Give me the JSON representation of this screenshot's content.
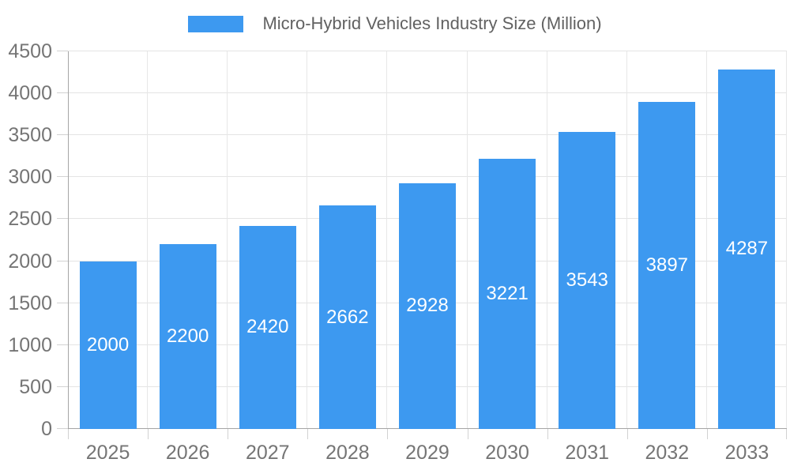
{
  "legend": {
    "label": "Micro-Hybrid Vehicles Industry Size (Million)"
  },
  "colors": {
    "bar": "#3d99f0",
    "bar_label_text": "#ffffff",
    "axis_text": "#757575",
    "legend_text": "#616161",
    "axis_line": "#a5a5a5",
    "grid_line": "#e4e4e4",
    "tick_line": "#d2d2d2",
    "background": "#ffffff"
  },
  "chart_data": {
    "type": "bar",
    "title": "Micro-Hybrid Vehicles Industry Size (Million)",
    "series": [
      {
        "name": "Micro-Hybrid Vehicles Industry Size (Million)",
        "values": [
          2000,
          2200,
          2420,
          2662,
          2928,
          3221,
          3543,
          3897,
          4287
        ]
      }
    ],
    "categories": [
      "2025",
      "2026",
      "2027",
      "2028",
      "2029",
      "2030",
      "2031",
      "2032",
      "2033"
    ],
    "xlabel": "",
    "ylabel": "",
    "ylim": [
      0,
      4500
    ],
    "y_tick_step": 500,
    "y_ticks": [
      0,
      500,
      1000,
      1500,
      2000,
      2500,
      3000,
      3500,
      4000,
      4500
    ],
    "grid": "horizontal-and-vertical",
    "legend_position": "top-center",
    "bar_label_position": "inside-center"
  }
}
